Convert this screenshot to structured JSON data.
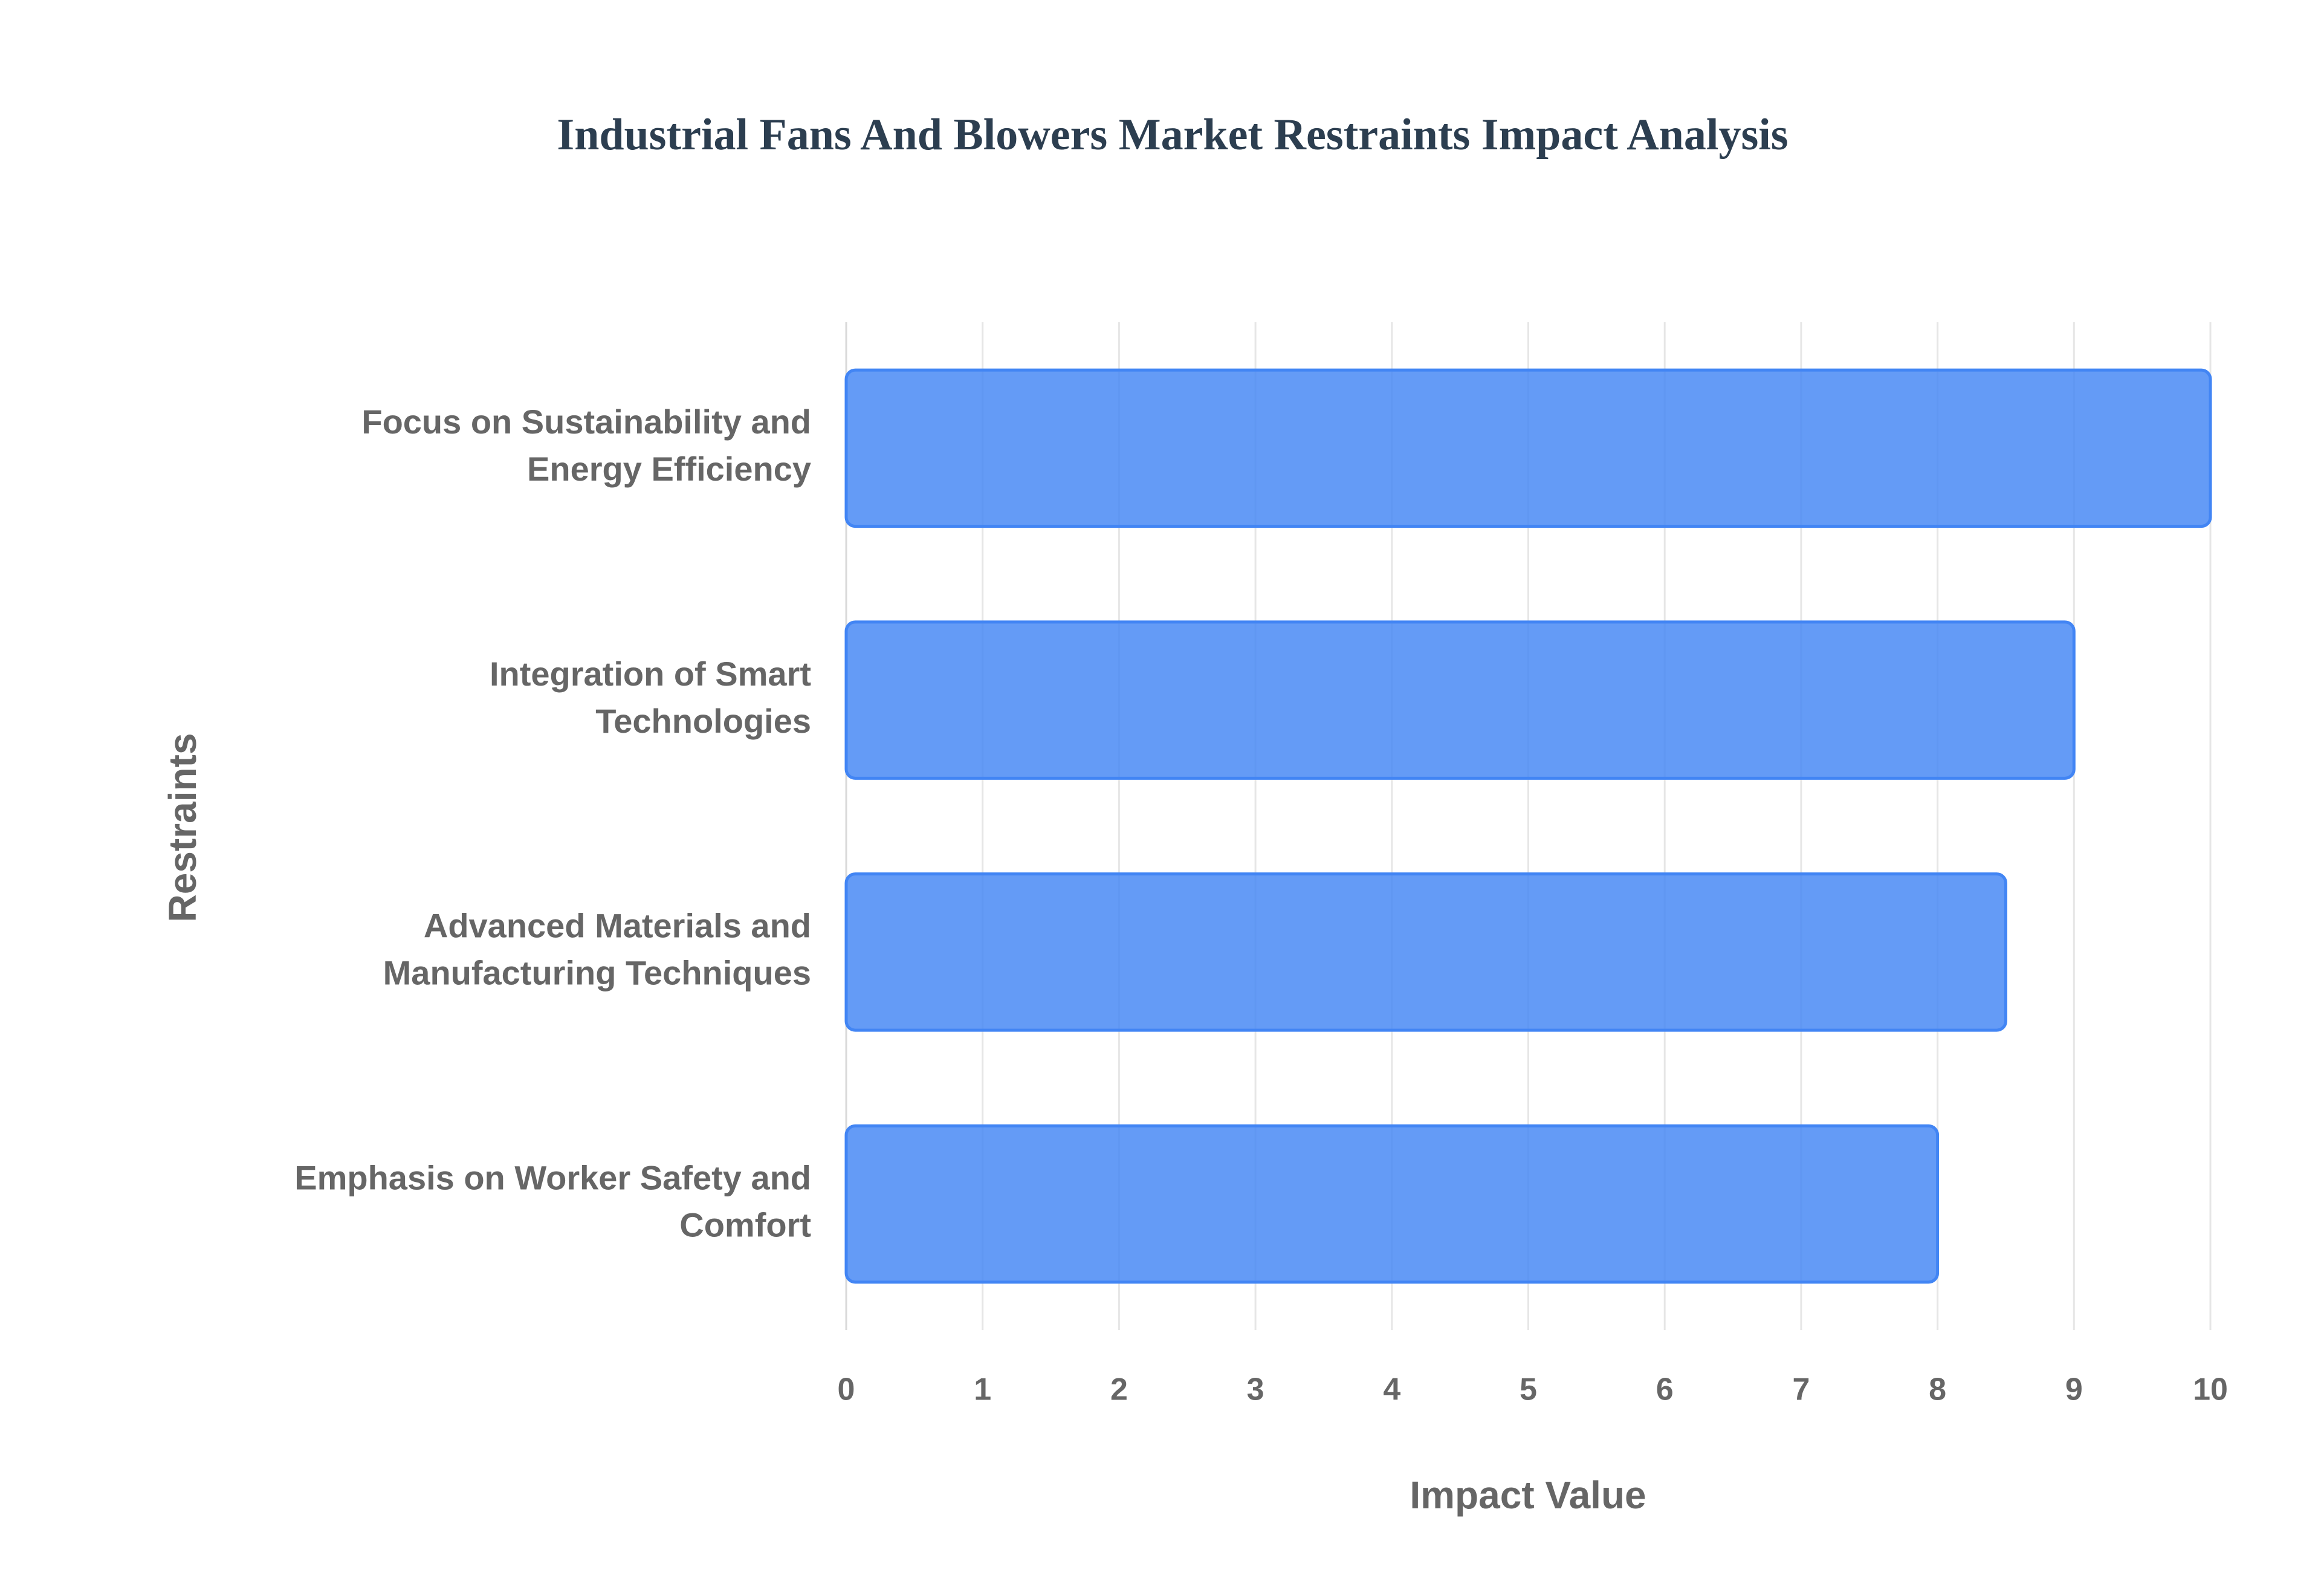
{
  "chart_data": {
    "type": "bar",
    "orientation": "horizontal",
    "title": "Industrial Fans And Blowers Market Restraints Impact Analysis",
    "x_label": "Impact Value",
    "y_label": "Restraints",
    "categories": [
      "Focus on Sustainability and Energy Efficiency",
      "Integration of Smart Technologies",
      "Advanced Materials and Manufacturing Techniques",
      "Emphasis on Worker Safety and Comfort"
    ],
    "values": [
      10,
      9,
      8.5,
      8
    ],
    "color": "#4285f4",
    "xlim": [
      0,
      10
    ],
    "xticks": [
      0,
      1,
      2,
      3,
      4,
      5,
      6,
      7,
      8,
      9,
      10
    ],
    "grid": true
  }
}
